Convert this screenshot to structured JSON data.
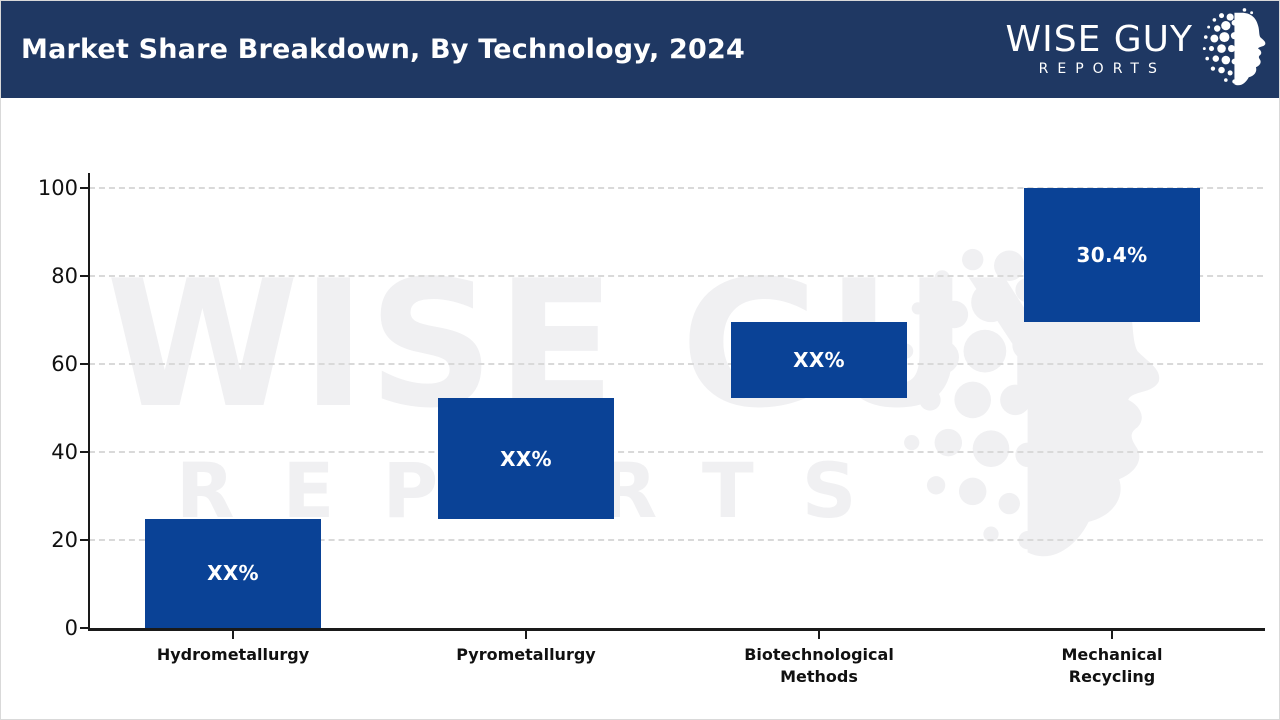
{
  "header": {
    "title": "Market Share Breakdown, By Technology, 2024",
    "logo": {
      "wordmark": "WISE GUY",
      "subtext": "REPORTS"
    }
  },
  "watermark": {
    "line1": "WISE GUY",
    "line2": "REPORTS"
  },
  "chart_data": {
    "type": "waterfall",
    "title": "Market Share Breakdown, By Technology, 2024",
    "categories": [
      "Hydrometallurgy",
      "Pyrometallurgy",
      "Biotechnological\nMethods",
      "Mechanical\nRecycling"
    ],
    "segments": [
      {
        "category": "Hydrometallurgy",
        "start": 0,
        "end": 24.8,
        "label": "XX%"
      },
      {
        "category": "Pyrometallurgy",
        "start": 24.8,
        "end": 52.2,
        "label": "XX%"
      },
      {
        "category": "Biotechnological Methods",
        "start": 52.2,
        "end": 69.6,
        "label": "XX%"
      },
      {
        "category": "Mechanical Recycling",
        "start": 69.6,
        "end": 100,
        "label": "30.4%"
      }
    ],
    "share_pct_estimated": [
      24.8,
      27.4,
      17.4,
      30.4
    ],
    "ylim": [
      0,
      100
    ],
    "yticks": [
      0,
      20,
      40,
      60,
      80,
      100
    ],
    "grid": "horizontal dashed",
    "legend": "none",
    "colors": {
      "bar": "#0a4296",
      "header_bg": "#1f3863",
      "title_text": "#ffffff",
      "grid": "#d9d9d9",
      "axis": "#1a1a1a",
      "bar_label_text": "#ffffff",
      "watermark": "#f0f0f2",
      "tick_text": "#111111"
    }
  }
}
